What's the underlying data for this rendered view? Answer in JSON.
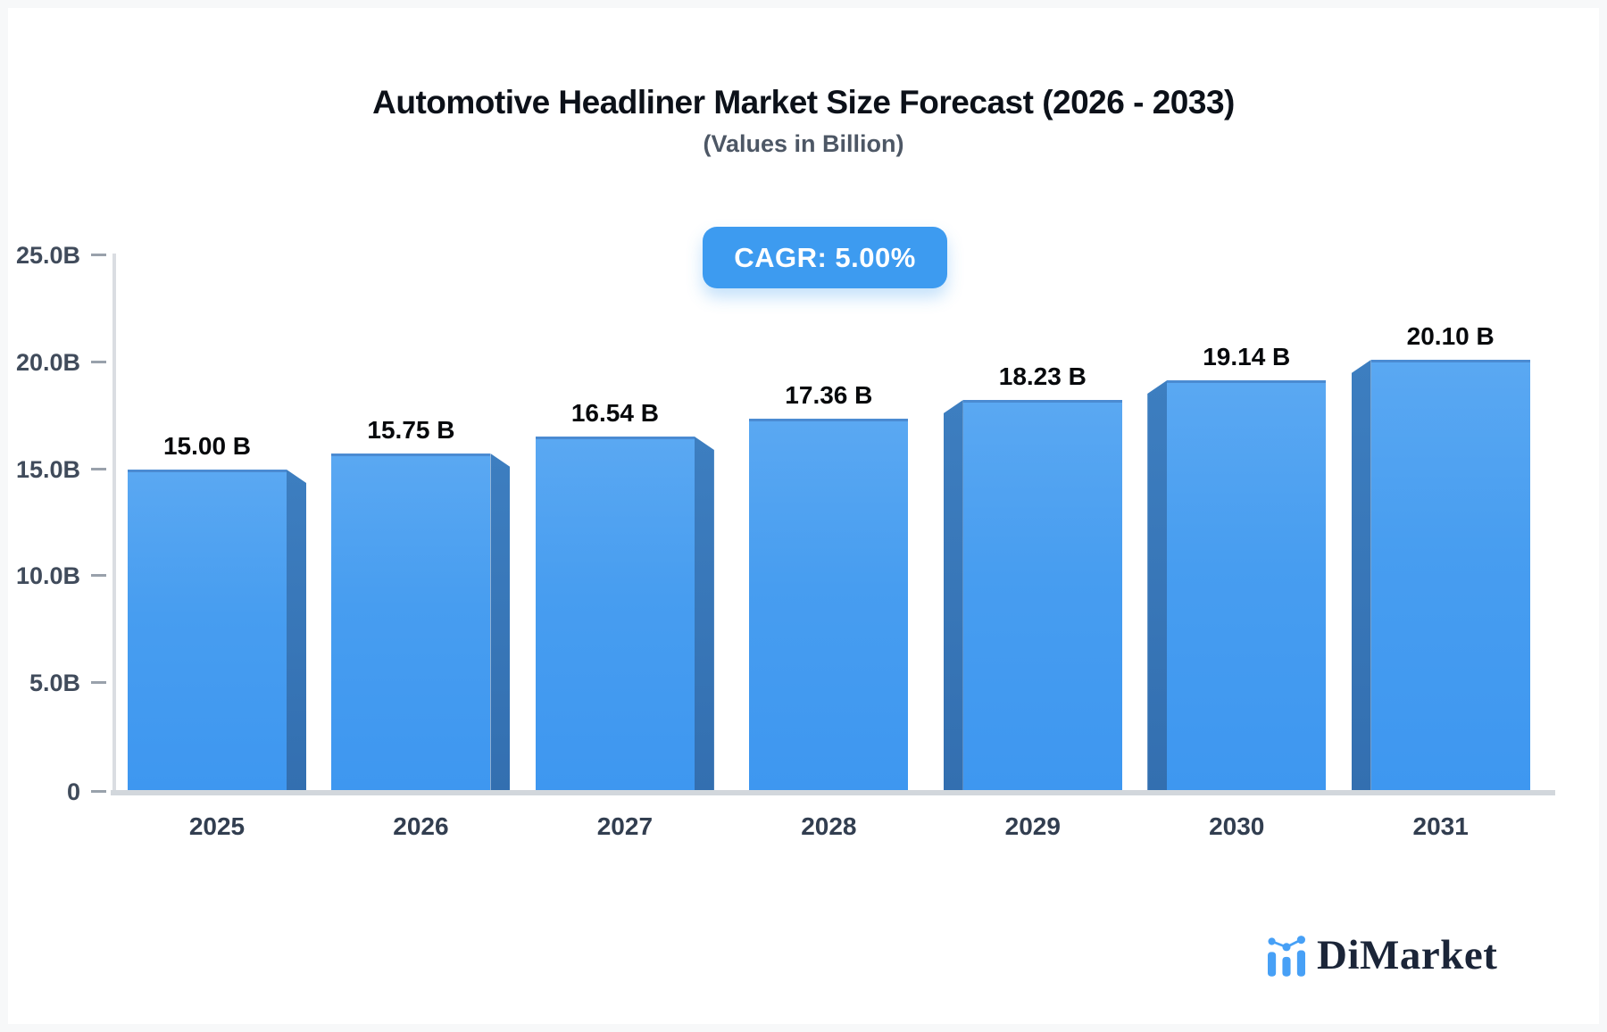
{
  "header": {
    "title": "Automotive Headliner Market Size Forecast (2026 - 2033)",
    "subtitle": "(Values in Billion)",
    "cagr_label": "CAGR: 5.00%"
  },
  "chart_data": {
    "type": "bar",
    "title": "Automotive Headliner Market Size Forecast (2026 - 2033)",
    "subtitle": "(Values in Billion)",
    "categories": [
      "2025",
      "2026",
      "2027",
      "2028",
      "2029",
      "2030",
      "2031"
    ],
    "values": [
      15.0,
      15.75,
      16.54,
      17.36,
      18.23,
      19.14,
      20.1
    ],
    "value_labels": [
      "15.00 B",
      "15.75 B",
      "16.54 B",
      "17.36 B",
      "18.23 B",
      "19.14 B",
      "20.10 B"
    ],
    "xlabel": "",
    "ylabel": "",
    "ylim": [
      0,
      25
    ],
    "yticks": [
      {
        "value": 0,
        "label": "0"
      },
      {
        "value": 5,
        "label": "5.0B"
      },
      {
        "value": 10,
        "label": "10.0B"
      },
      {
        "value": 15,
        "label": "15.0B"
      },
      {
        "value": 20,
        "label": "20.0B"
      },
      {
        "value": 25,
        "label": "25.0B"
      }
    ],
    "grid": false,
    "legend": "none",
    "cagr": "5.00%",
    "bar_style": "3d-perspective-center-vanishing-point"
  },
  "colors": {
    "bar_top": "#5aa8f2",
    "bar_bottom": "#3e97f0",
    "bar_side": "#3877b8",
    "bar_top_edge": "#4b8bd2",
    "badge_bg": "#3d9bf0",
    "badge_text": "#ffffff",
    "baseline": "#d2d7dc",
    "axis_line": "#dadde2",
    "tick_dash": "#99a1ab",
    "title_text": "#0c1119",
    "subtitle_text": "#4d5765",
    "axis_label_text": "#404b5b",
    "brand_text": "#1b2538",
    "brand_icon": "#47a0f6"
  },
  "footer": {
    "brand": "DiMarket"
  }
}
